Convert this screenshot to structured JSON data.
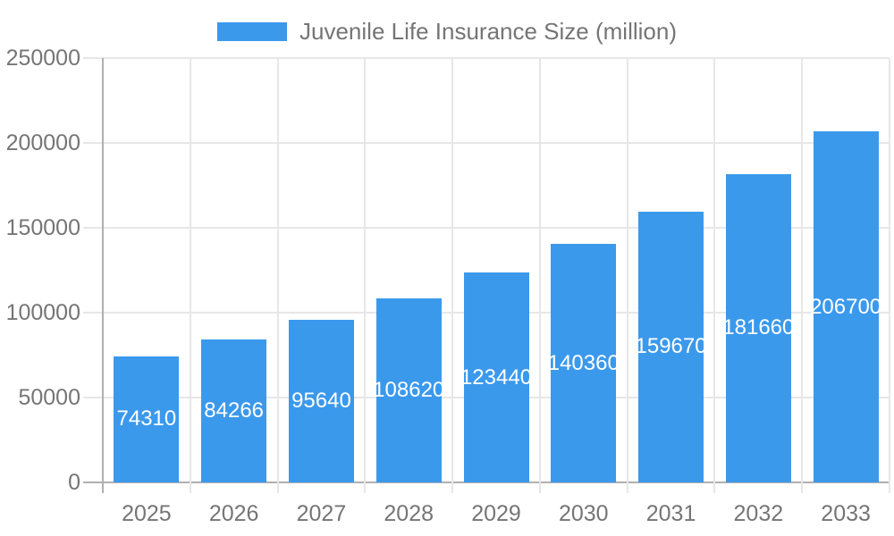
{
  "chart_data": {
    "type": "bar",
    "title": "Juvenile Life Insurance Size (million)",
    "legend": {
      "label": "Juvenile Life Insurance Size (million)",
      "position": "top"
    },
    "categories": [
      "2025",
      "2026",
      "2027",
      "2028",
      "2029",
      "2030",
      "2031",
      "2032",
      "2033"
    ],
    "values": [
      74310,
      84266,
      95640,
      108620,
      123440,
      140360,
      159670,
      181660,
      206700
    ],
    "xlabel": "",
    "ylabel": "",
    "ylim": [
      0,
      250000
    ],
    "yticks": [
      0,
      50000,
      100000,
      150000,
      200000,
      250000
    ],
    "grid": true,
    "bar_labels": "inside-center-white",
    "colors": {
      "bar": "#3B99EC",
      "grid": "#E7E7E7",
      "axis": "#B0B0B0",
      "text": "#757575",
      "bar_label": "#FFFFFF"
    }
  }
}
